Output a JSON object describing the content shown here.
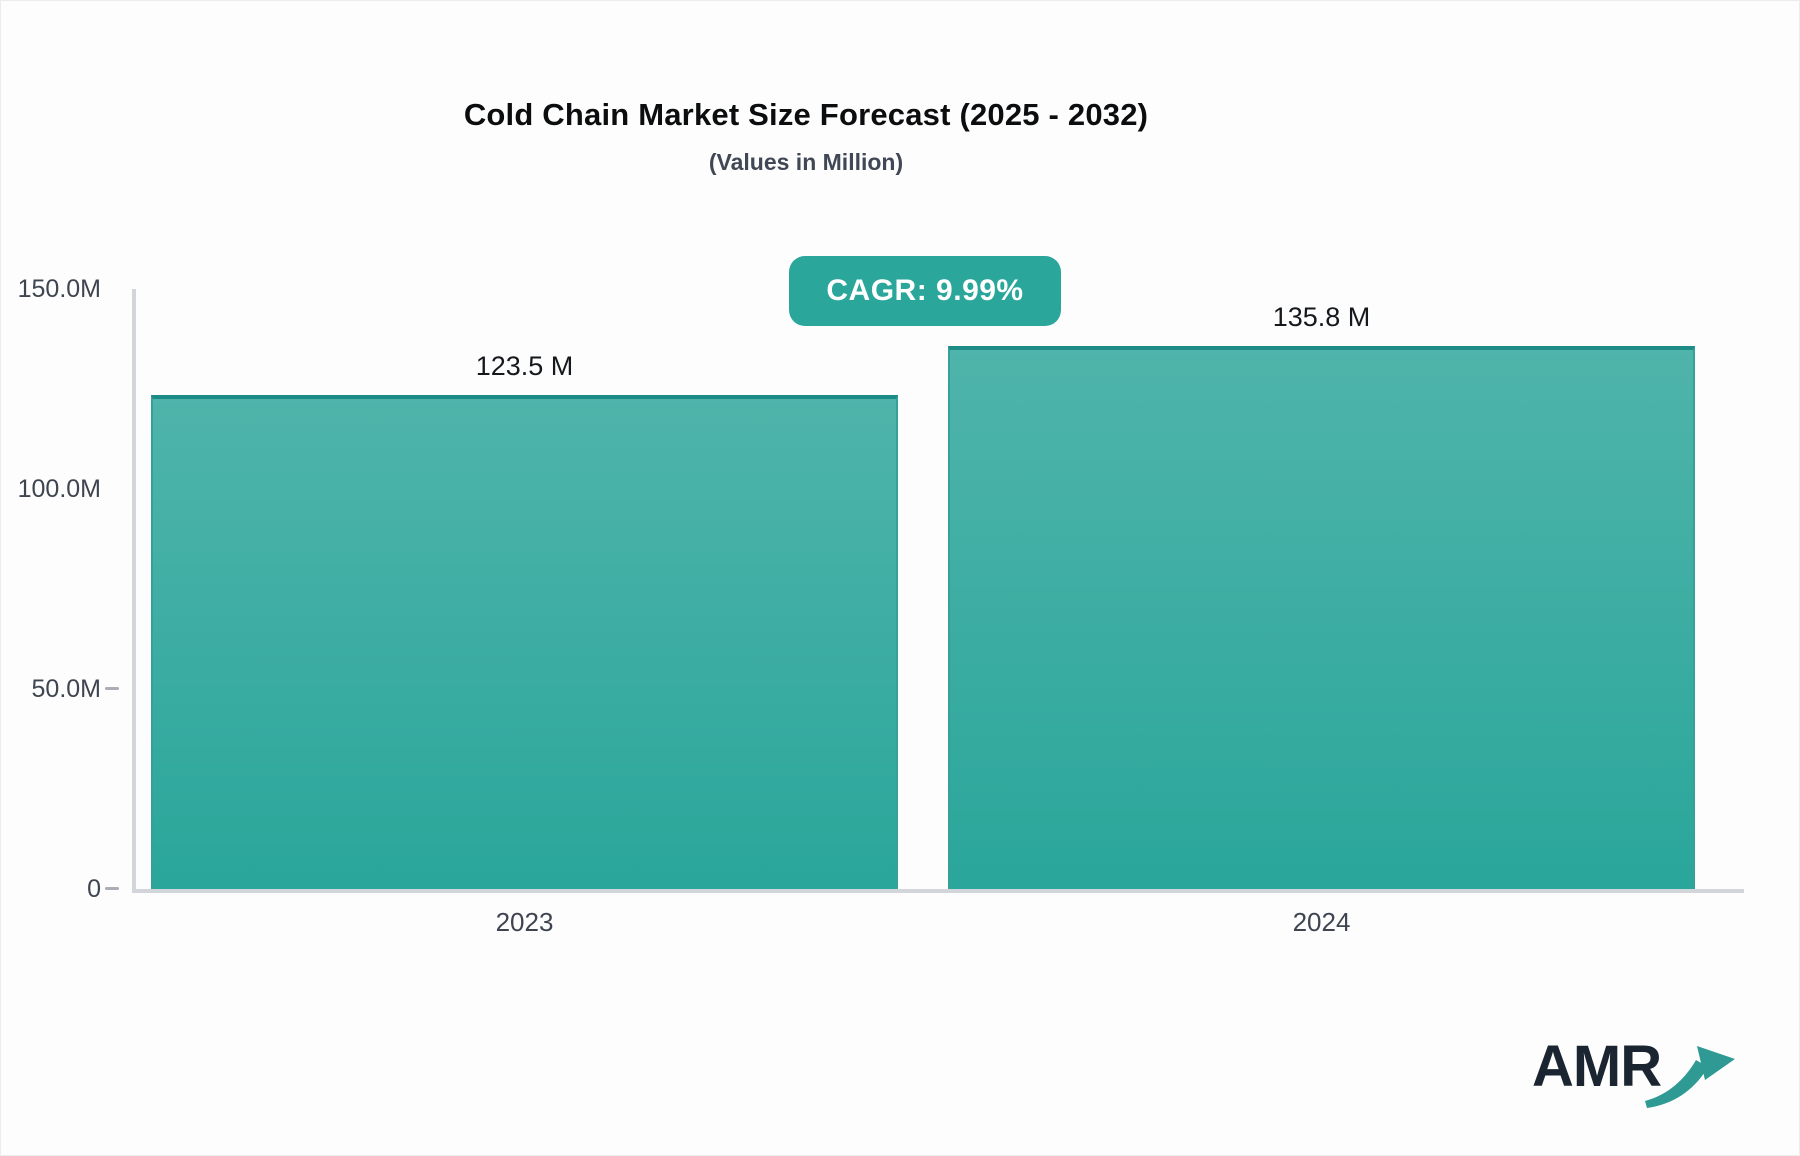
{
  "header": {
    "title": "Cold Chain Market Size Forecast (2025 - 2032)",
    "subtitle": "(Values in Million)",
    "cagr_label": "CAGR: 9.99%"
  },
  "logo": {
    "text": "AMR"
  },
  "colors": {
    "background": "#fdfdfd",
    "title": "#0c0d0e",
    "subtitle": "#3f4854",
    "badge_bg": "#2aa69b",
    "badge_text": "#ffffff",
    "bar_top": "#4fb4ab",
    "bar_bottom": "#2aa69a",
    "bar_edge_top": "#1d8c86",
    "bar_edge_side": "#36a199",
    "axis_line": "#d2d5da",
    "tick_dash": "#a9adb5",
    "tick_label": "#3e4550",
    "value_label": "#15181c",
    "logo_text": "#1b2531",
    "logo_arrow": "#2f9a94"
  },
  "chart_data": {
    "type": "bar",
    "title": "Cold Chain Market Size Forecast (2025 - 2032)",
    "subtitle": "(Values in Million)",
    "annotation": "CAGR: 9.99%",
    "categories": [
      "2023",
      "2024"
    ],
    "values": [
      123.5,
      135.8
    ],
    "value_labels": [
      "123.5 M",
      "135.8 M"
    ],
    "xlabel": "",
    "ylabel": "",
    "ylim": [
      0,
      150
    ],
    "yticks": [
      {
        "label": "150.0M",
        "value": 150,
        "dash": false
      },
      {
        "label": "100.0M",
        "value": 100,
        "dash": false
      },
      {
        "label": "50.0M",
        "value": 50,
        "dash": true
      },
      {
        "label": "0",
        "value": 0,
        "dash": true
      }
    ],
    "grid": false,
    "legend": null
  }
}
